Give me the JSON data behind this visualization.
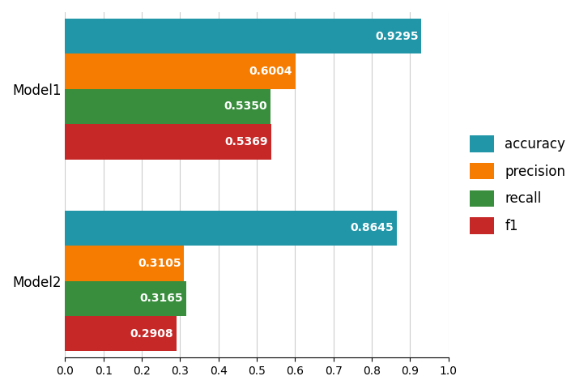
{
  "models": [
    "Model1",
    "Model2"
  ],
  "metrics": [
    "accuracy",
    "precision",
    "recall",
    "f1"
  ],
  "colors": [
    "#2196a8",
    "#f57c00",
    "#388e3c",
    "#c62828"
  ],
  "values": {
    "Model1": [
      0.9295,
      0.6004,
      0.535,
      0.5369
    ],
    "Model2": [
      0.8645,
      0.3105,
      0.3165,
      0.2908
    ]
  },
  "xlim": [
    0.0,
    1.0
  ],
  "xticks": [
    0.0,
    0.1,
    0.2,
    0.3,
    0.4,
    0.5,
    0.6,
    0.7,
    0.8,
    0.9,
    1.0
  ],
  "bar_height": 0.55,
  "label_fontsize": 10,
  "tick_fontsize": 10,
  "ytick_fontsize": 12,
  "legend_fontsize": 12,
  "background_color": "#ffffff",
  "grid_color": "#cccccc"
}
